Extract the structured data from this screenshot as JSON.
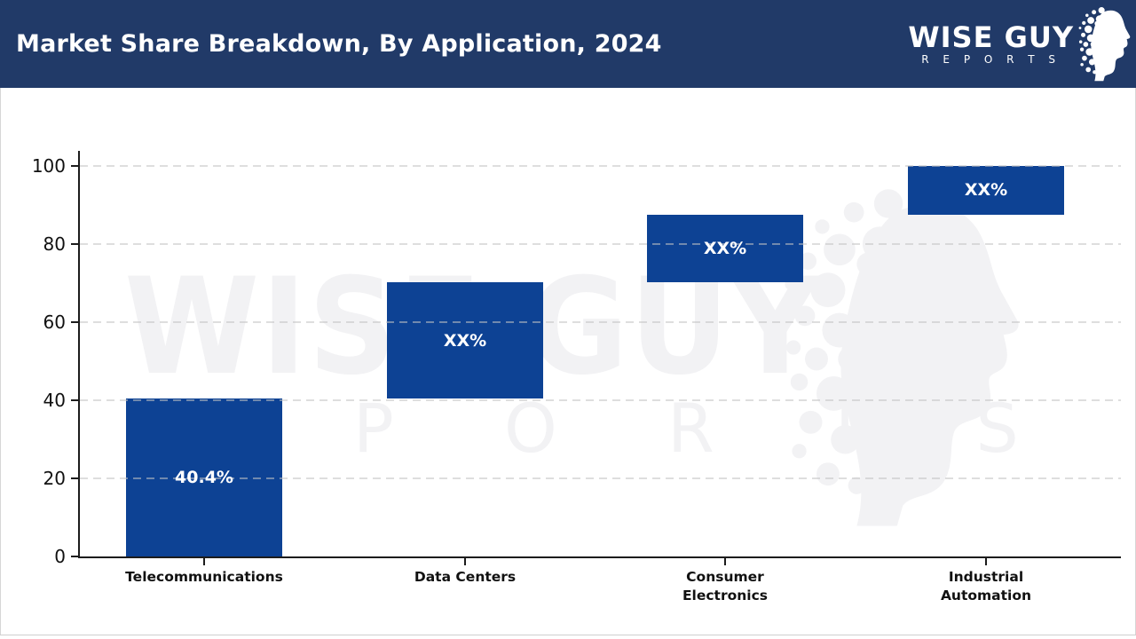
{
  "header": {
    "title": "Market Share Breakdown, By Application, 2024",
    "logo": {
      "brand_line1": "WISE GUY",
      "brand_line2": "R E P O R T S"
    }
  },
  "watermark": {
    "text_line1": "WISE GUY",
    "text_line2": "P O R T S"
  },
  "colors": {
    "header_bg": "#213a68",
    "bar_fill": "#0d4294",
    "bar_label_text": "#ffffff",
    "axis": "#1c1c1c",
    "tick_label_text": "#111111",
    "gridline": "#c3c3c3",
    "watermark": "#f2f2f4",
    "page_bg": "#ffffff"
  },
  "chart_data": {
    "type": "bar",
    "subtype": "waterfall",
    "title": "Market Share Breakdown, By Application, 2024",
    "xlabel": "",
    "ylabel": "",
    "ylim": [
      0,
      100
    ],
    "y_ticks": [
      0,
      20,
      40,
      60,
      80,
      100
    ],
    "grid": "horizontal-dashed",
    "legend": "none",
    "categories": [
      "Telecommunications",
      "Data Centers",
      "Consumer\nElectronics",
      "Industrial\nAutomation"
    ],
    "bars": [
      {
        "category": "Telecommunications",
        "start": 0,
        "end": 40.4,
        "value_label": "40.4%"
      },
      {
        "category": "Data Centers",
        "start": 40.4,
        "end": 70.2,
        "value_label": "XX%"
      },
      {
        "category": "Consumer\nElectronics",
        "start": 70.2,
        "end": 87.5,
        "value_label": "XX%"
      },
      {
        "category": "Industrial\nAutomation",
        "start": 87.5,
        "end": 100,
        "value_label": "XX%"
      }
    ]
  }
}
